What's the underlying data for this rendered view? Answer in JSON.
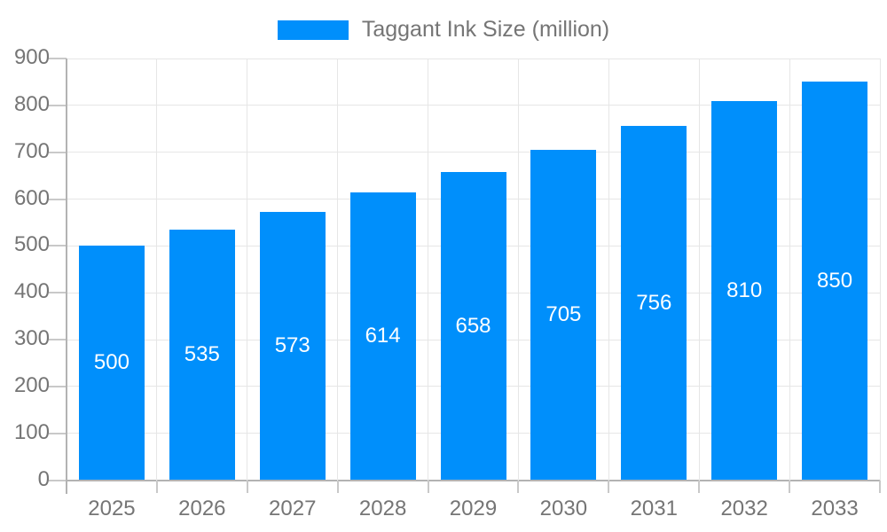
{
  "legend": {
    "label": "Taggant Ink Size (million)"
  },
  "chart_data": {
    "type": "bar",
    "title": "",
    "categories": [
      "2025",
      "2026",
      "2027",
      "2028",
      "2029",
      "2030",
      "2031",
      "2032",
      "2033"
    ],
    "series": [
      {
        "name": "Taggant Ink Size (million)",
        "color": "#008FFB",
        "values": [
          500,
          535,
          573,
          614,
          658,
          705,
          756,
          810,
          850
        ]
      }
    ],
    "xlabel": "",
    "ylabel": "",
    "ylim": [
      0,
      900
    ],
    "yticks": [
      0,
      100,
      200,
      300,
      400,
      500,
      600,
      700,
      800,
      900
    ],
    "grid": true,
    "legend_position": "top",
    "value_labels_shown": true,
    "colors": {
      "bar": "#008FFB",
      "axis_text": "#757575",
      "value_text": "#ffffff",
      "gridline": "#e6e6e6",
      "axis_line": "#b3b3b3",
      "tick": "#c9c9c9",
      "background": "#ffffff"
    }
  }
}
